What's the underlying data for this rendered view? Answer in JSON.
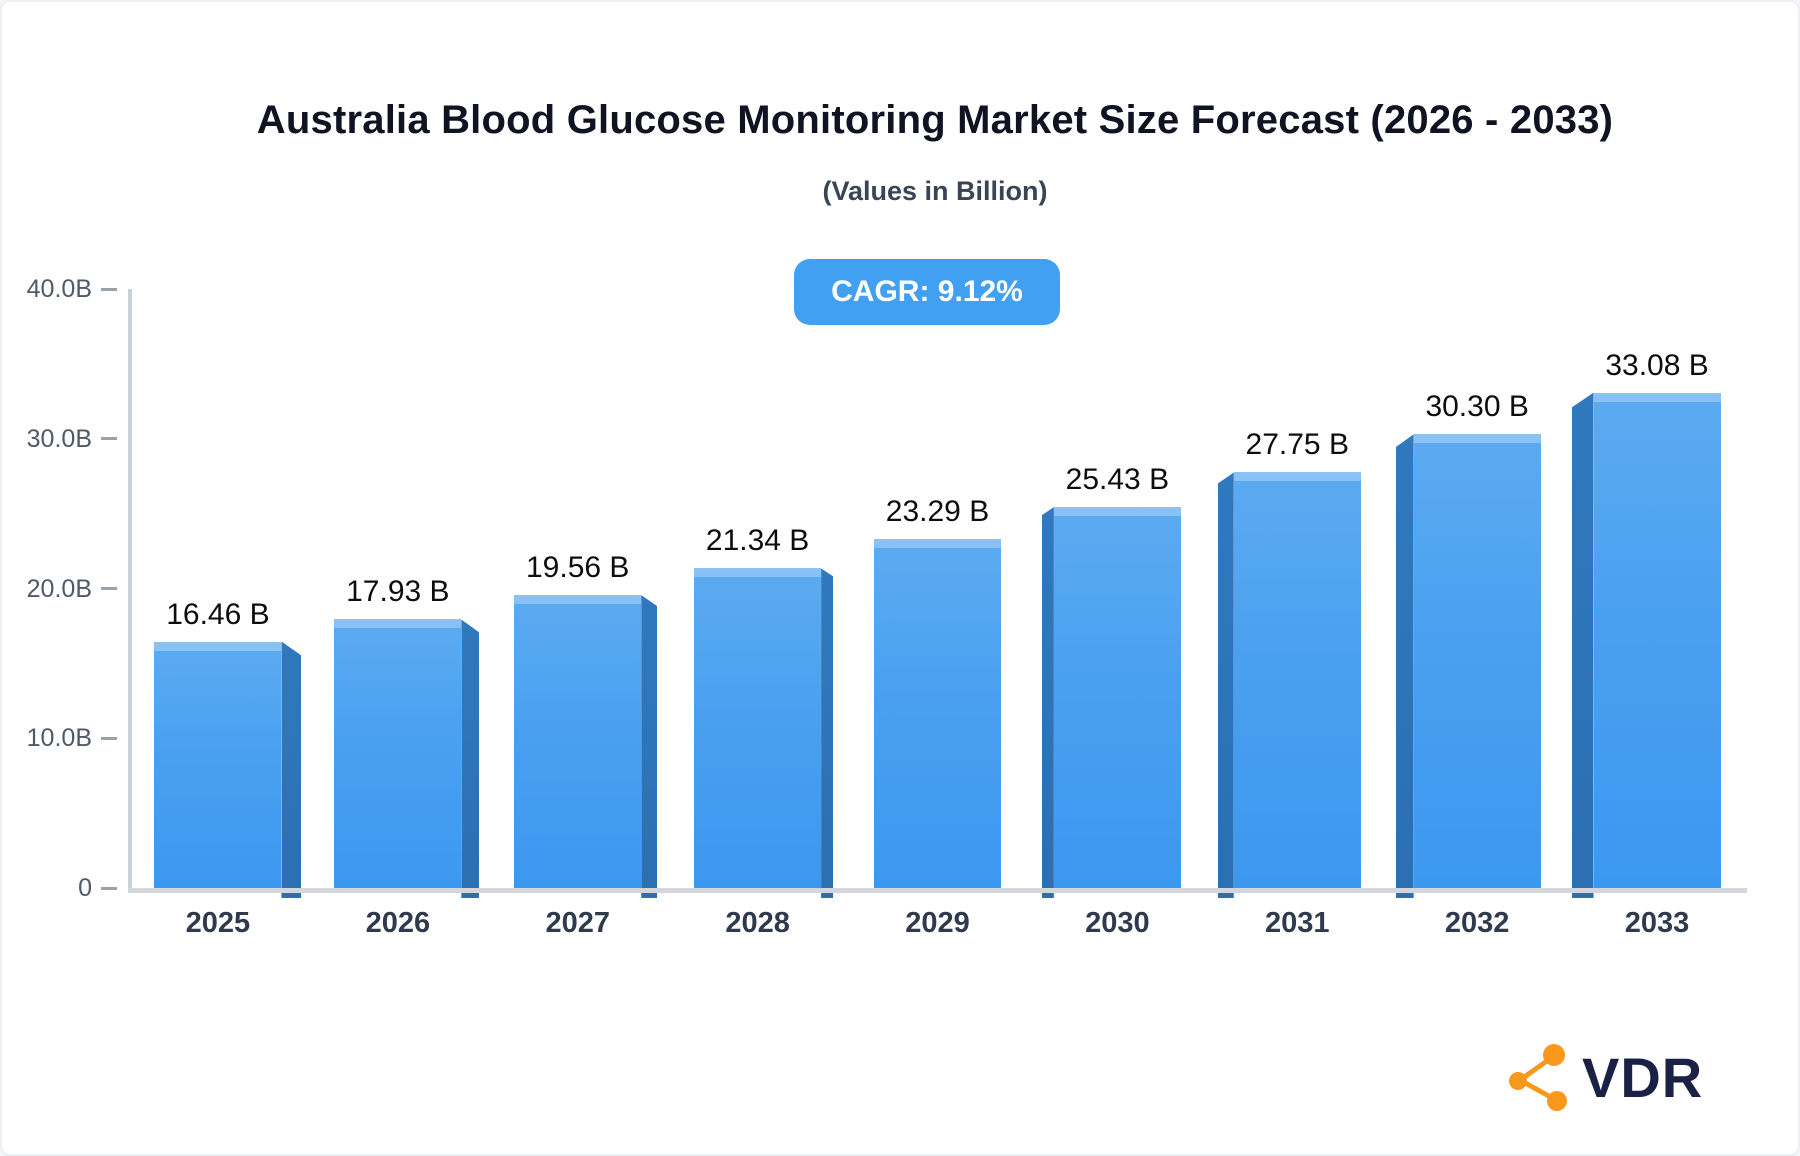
{
  "header": {
    "title": "Australia Blood Glucose Monitoring Market Size Forecast (2026 - 2033)",
    "subtitle": "(Values in Billion)"
  },
  "badge": {
    "label": "CAGR: 9.12%"
  },
  "chart_data": {
    "type": "bar",
    "title": "Australia Blood Glucose Monitoring Market Size Forecast (2026 - 2033)",
    "subtitle": "(Values in Billion)",
    "cagr_percent": 9.12,
    "categories": [
      "2025",
      "2026",
      "2027",
      "2028",
      "2029",
      "2030",
      "2031",
      "2032",
      "2033"
    ],
    "values": [
      16.46,
      17.93,
      19.56,
      21.34,
      23.29,
      25.43,
      27.75,
      30.3,
      33.08
    ],
    "value_labels": [
      "16.46 B",
      "17.93 B",
      "19.56 B",
      "21.34 B",
      "23.29 B",
      "25.43 B",
      "27.75 B",
      "30.30 B",
      "33.08 B"
    ],
    "unit": "Billion",
    "ylim": [
      0,
      40
    ],
    "yticks": [
      {
        "label": "40.0B",
        "value": 40
      },
      {
        "label": "30.0B",
        "value": 30
      },
      {
        "label": "20.0B",
        "value": 20
      },
      {
        "label": "10.0B",
        "value": 10
      },
      {
        "label": "0",
        "value": 0
      }
    ],
    "grid": false,
    "legend": false,
    "colors": {
      "bar_face_top": "#5cabf1",
      "bar_face_bottom": "#3c98ef",
      "bar_side": "#2e74b9",
      "badge_background": "#41a0f1",
      "axis_line": "#cbd1d9",
      "value_label": "#0c0d10",
      "year_label": "#2f3a4d",
      "ytick_label": "#4f5a68"
    }
  },
  "logo": {
    "text": "VDR",
    "icon": "share-network-icon",
    "icon_color": "#f8981d",
    "text_color": "#1b2144"
  }
}
